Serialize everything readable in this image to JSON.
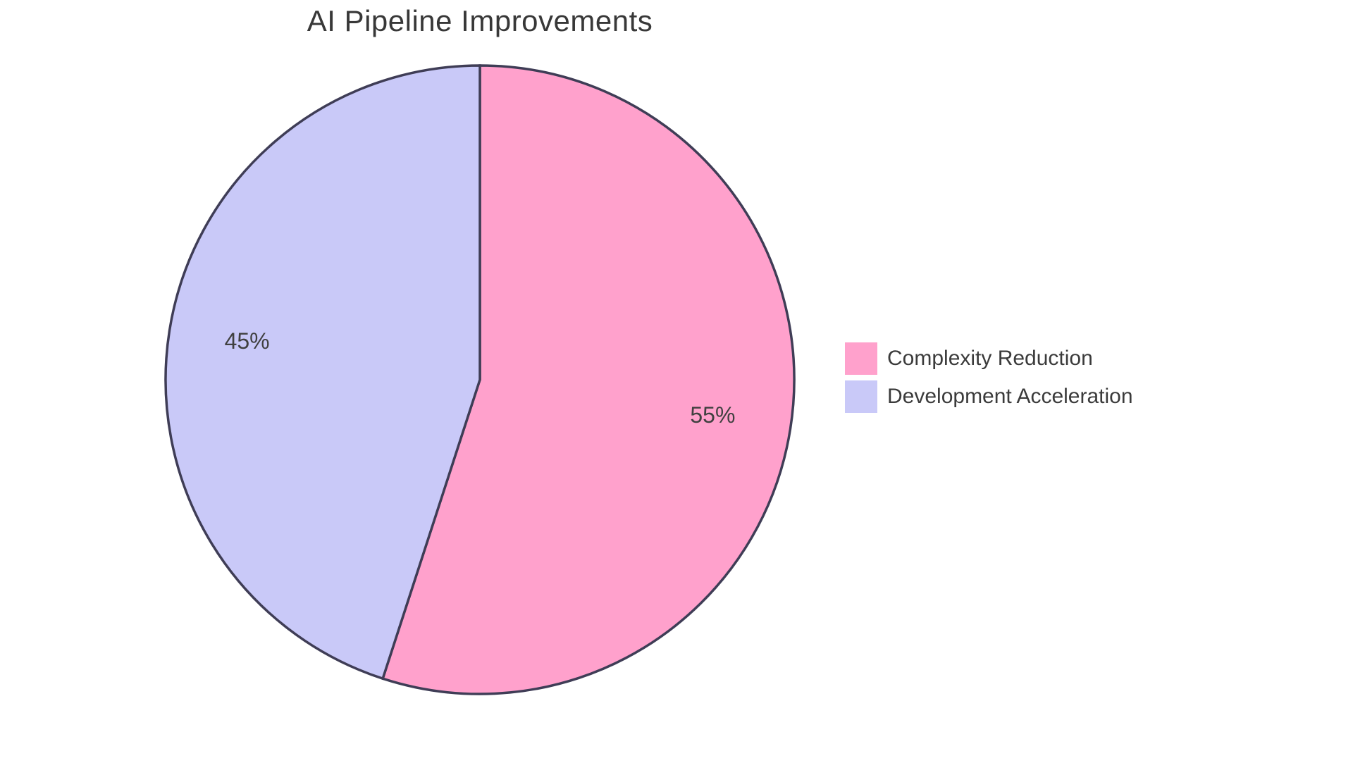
{
  "chart_data": {
    "type": "pie",
    "title": "AI Pipeline Improvements",
    "slices": [
      {
        "label": "Complexity Reduction",
        "value": 55,
        "display": "55%",
        "color": "#FFA1CC"
      },
      {
        "label": "Development Acceleration",
        "value": 45,
        "display": "45%",
        "color": "#C9C9F8"
      }
    ],
    "start_angle_deg": 0,
    "direction": "clockwise",
    "stroke_color": "#3F3D56",
    "label_color": "#404040",
    "title_color": "#383838",
    "legend_position": "right",
    "background": "#ffffff"
  }
}
